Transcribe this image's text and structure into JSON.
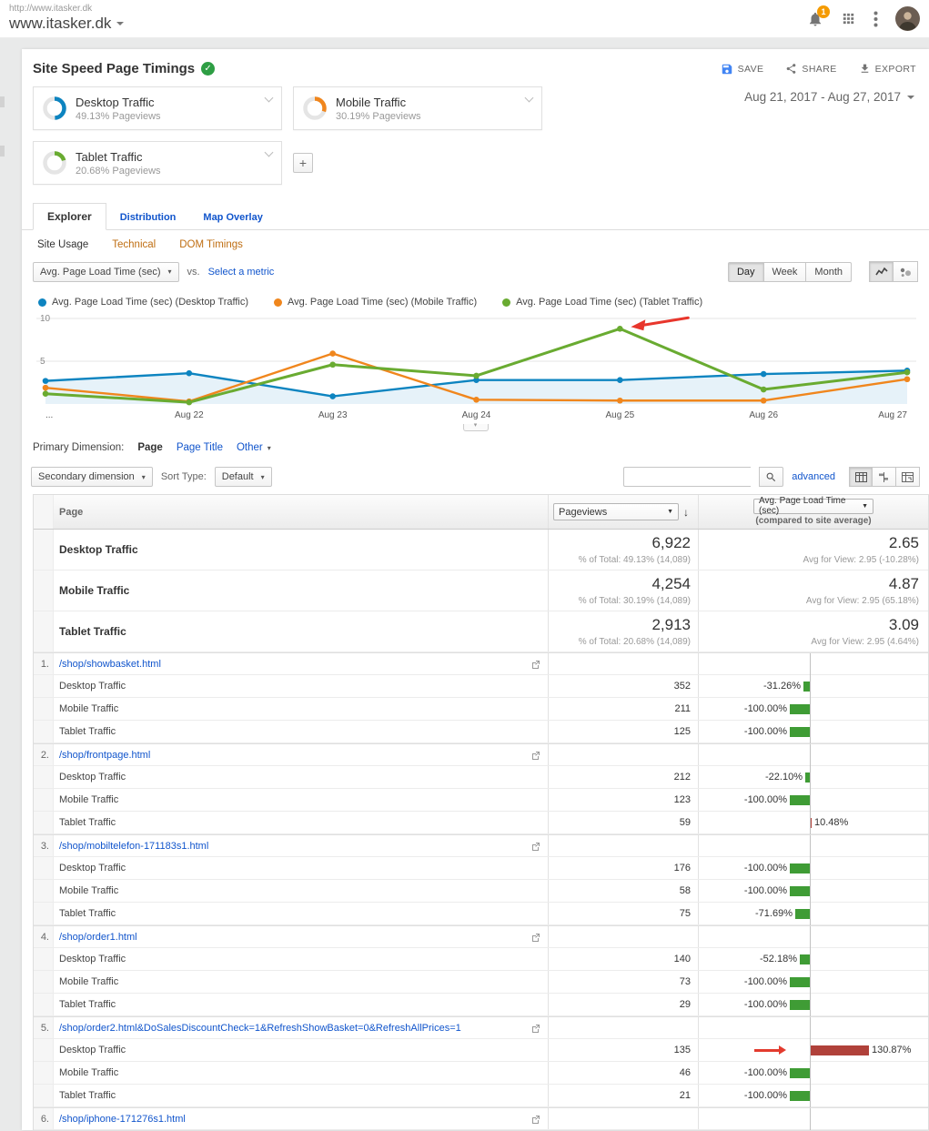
{
  "topbar": {
    "url": "http://www.itasker.dk",
    "account": "www.itasker.dk",
    "notification_count": "1"
  },
  "report": {
    "title": "Site Speed Page Timings",
    "save_label": "SAVE",
    "share_label": "SHARE",
    "export_label": "EXPORT",
    "date_range": "Aug 21, 2017 - Aug 27, 2017"
  },
  "segments": [
    {
      "name": "Desktop Traffic",
      "detail": "49.13% Pageviews",
      "pct": 49.13,
      "color": "#0d84c0"
    },
    {
      "name": "Mobile Traffic",
      "detail": "30.19% Pageviews",
      "pct": 30.19,
      "color": "#f0861d"
    },
    {
      "name": "Tablet Traffic",
      "detail": "20.68% Pageviews",
      "pct": 20.68,
      "color": "#69ab31"
    }
  ],
  "add_segment_label": "+",
  "tabs": {
    "explorer": "Explorer",
    "distribution": "Distribution",
    "map_overlay": "Map Overlay"
  },
  "subtabs": {
    "site_usage": "Site Usage",
    "technical": "Technical",
    "dom_timings": "DOM Timings"
  },
  "metric_bar": {
    "metric": "Avg. Page Load Time (sec)",
    "vs_label": "vs.",
    "select_metric": "Select a metric",
    "day": "Day",
    "week": "Week",
    "month": "Month"
  },
  "legend": [
    {
      "label": "Avg. Page Load Time (sec) (Desktop Traffic)",
      "color": "#0d84c0"
    },
    {
      "label": "Avg. Page Load Time (sec) (Mobile Traffic)",
      "color": "#f0861d"
    },
    {
      "label": "Avg. Page Load Time (sec) (Tablet Traffic)",
      "color": "#69ab31"
    }
  ],
  "chart_data": {
    "type": "line",
    "x": [
      "...",
      "Aug 22",
      "Aug 23",
      "Aug 24",
      "Aug 25",
      "Aug 26",
      "Aug 27"
    ],
    "ylim": [
      0,
      10
    ],
    "yticks": [
      5,
      10
    ],
    "annotation": "red arrow pointing at Tablet Traffic peak on Aug 25",
    "series": [
      {
        "name": "Avg. Page Load Time (sec) (Desktop Traffic)",
        "color": "#0d84c0",
        "area": true,
        "values": [
          2.7,
          3.6,
          0.9,
          2.8,
          2.8,
          3.5,
          3.9
        ]
      },
      {
        "name": "Avg. Page Load Time (sec) (Mobile Traffic)",
        "color": "#f0861d",
        "area": false,
        "values": [
          1.9,
          0.3,
          5.9,
          0.5,
          0.4,
          0.4,
          2.9
        ]
      },
      {
        "name": "Avg. Page Load Time (sec) (Tablet Traffic)",
        "color": "#69ab31",
        "area": false,
        "values": [
          1.2,
          0.2,
          4.6,
          3.3,
          8.8,
          1.7,
          3.7
        ]
      }
    ]
  },
  "primary_dimension": {
    "label": "Primary Dimension:",
    "page": "Page",
    "page_title": "Page Title",
    "other": "Other"
  },
  "toolbar": {
    "secondary_dimension": "Secondary dimension",
    "sort_type_label": "Sort Type:",
    "sort_type_value": "Default",
    "advanced_label": "advanced"
  },
  "table": {
    "columns": {
      "page": "Page",
      "pageviews": "Pageviews",
      "metric": "Avg. Page Load Time (sec)",
      "metric_note": "(compared to site average)"
    },
    "summary": [
      {
        "name": "Desktop Traffic",
        "pageviews": "6,922",
        "pv_note": "% of Total: 49.13% (14,089)",
        "value": "2.65",
        "value_note": "Avg for View: 2.95 (-10.28%)"
      },
      {
        "name": "Mobile Traffic",
        "pageviews": "4,254",
        "pv_note": "% of Total: 30.19% (14,089)",
        "value": "4.87",
        "value_note": "Avg for View: 2.95 (65.18%)"
      },
      {
        "name": "Tablet Traffic",
        "pageviews": "2,913",
        "pv_note": "% of Total: 20.68% (14,089)",
        "value": "3.09",
        "value_note": "Avg for View: 2.95 (4.64%)"
      }
    ],
    "rows": [
      {
        "num": "1.",
        "page": "/shop/showbasket.html",
        "segments": [
          {
            "name": "Desktop Traffic",
            "pageviews": "352",
            "pct": -31.26,
            "label": "-31.26%"
          },
          {
            "name": "Mobile Traffic",
            "pageviews": "211",
            "pct": -100.0,
            "label": "-100.00%"
          },
          {
            "name": "Tablet Traffic",
            "pageviews": "125",
            "pct": -100.0,
            "label": "-100.00%"
          }
        ]
      },
      {
        "num": "2.",
        "page": "/shop/frontpage.html",
        "segments": [
          {
            "name": "Desktop Traffic",
            "pageviews": "212",
            "pct": -22.1,
            "label": "-22.10%"
          },
          {
            "name": "Mobile Traffic",
            "pageviews": "123",
            "pct": -100.0,
            "label": "-100.00%"
          },
          {
            "name": "Tablet Traffic",
            "pageviews": "59",
            "pct": 10.48,
            "label": "10.48%"
          }
        ]
      },
      {
        "num": "3.",
        "page": "/shop/mobiltelefon-171183s1.html",
        "segments": [
          {
            "name": "Desktop Traffic",
            "pageviews": "176",
            "pct": -100.0,
            "label": "-100.00%"
          },
          {
            "name": "Mobile Traffic",
            "pageviews": "58",
            "pct": -100.0,
            "label": "-100.00%"
          },
          {
            "name": "Tablet Traffic",
            "pageviews": "75",
            "pct": -71.69,
            "label": "-71.69%"
          }
        ]
      },
      {
        "num": "4.",
        "page": "/shop/order1.html",
        "segments": [
          {
            "name": "Desktop Traffic",
            "pageviews": "140",
            "pct": -52.18,
            "label": "-52.18%"
          },
          {
            "name": "Mobile Traffic",
            "pageviews": "73",
            "pct": -100.0,
            "label": "-100.00%"
          },
          {
            "name": "Tablet Traffic",
            "pageviews": "29",
            "pct": -100.0,
            "label": "-100.00%"
          }
        ]
      },
      {
        "num": "5.",
        "page": "/shop/order2.html&DoSalesDiscountCheck=1&RefreshShowBasket=0&RefreshAllPrices=1",
        "segments": [
          {
            "name": "Desktop Traffic",
            "pageviews": "135",
            "pct": 130.87,
            "label": "130.87%",
            "arrow": true
          },
          {
            "name": "Mobile Traffic",
            "pageviews": "46",
            "pct": -100.0,
            "label": "-100.00%"
          },
          {
            "name": "Tablet Traffic",
            "pageviews": "21",
            "pct": -100.0,
            "label": "-100.00%"
          }
        ]
      },
      {
        "num": "6.",
        "page": "/shop/iphone-171276s1.html",
        "segments": []
      }
    ]
  }
}
